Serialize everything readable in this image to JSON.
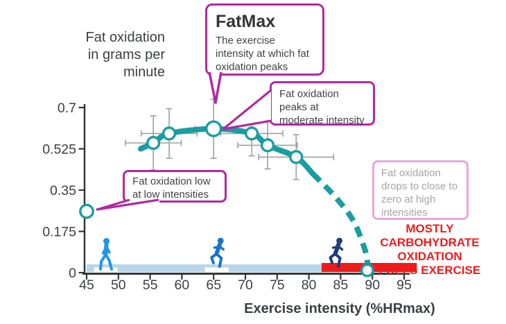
{
  "colors": {
    "teal": "#1b9da1",
    "magenta": "#b2299e",
    "pink_border": "#eba4e0",
    "red": "#ee1b1b",
    "bar_light_blue": "#b9d6ea",
    "walker_blue": "#1e96e6",
    "runner_blue": "#1a72cf",
    "runner_navy": "#1d3d7d",
    "axis": "#33373a",
    "errorbar_gray": "#9f9f9f",
    "gray_text": "#a5a5a5"
  },
  "chart_data": {
    "type": "line",
    "xlabel": "Exercise intensity (%HRmax)",
    "ylabel": "Fat oxidation in grams per minute",
    "ylabel_lines": [
      "Fat oxidation",
      "in grams per",
      "minute"
    ],
    "x_ticks": [
      45,
      50,
      55,
      60,
      65,
      70,
      75,
      80,
      85,
      90,
      95
    ],
    "y_ticks": [
      "0",
      "0.175",
      "0.35",
      "0.525",
      "0.7"
    ],
    "y_tick_values": [
      0,
      0.175,
      0.35,
      0.525,
      0.7
    ],
    "xlim": [
      45,
      95
    ],
    "ylim": [
      0,
      0.7
    ],
    "grid": false,
    "series": [
      {
        "name": "low-intensity-point",
        "points": [
          {
            "x": 45,
            "y": 0.26
          }
        ]
      },
      {
        "name": "measured-fat-oxidation",
        "points": [
          {
            "x": 55.5,
            "y": 0.55,
            "xerr": 4.4,
            "yerr": 0.115
          },
          {
            "x": 58.0,
            "y": 0.59,
            "xerr": 4.4,
            "yerr": 0.105
          },
          {
            "x": 65.0,
            "y": 0.61,
            "xerr": 2.9,
            "yerr": 0.125,
            "fatmax": true
          },
          {
            "x": 71.0,
            "y": 0.59,
            "xerr": 4.9,
            "yerr": 0.095
          },
          {
            "x": 73.5,
            "y": 0.54,
            "xerr": 4.7,
            "yerr": 0.1
          },
          {
            "x": 78.0,
            "y": 0.49,
            "xerr": 5.9,
            "yerr": 0.095
          }
        ]
      },
      {
        "name": "high-intensity-point",
        "points": [
          {
            "x": 89.2,
            "y": 0.01
          }
        ]
      }
    ],
    "solid_curve": [
      [
        53.5,
        0.525
      ],
      [
        55.5,
        0.55
      ],
      [
        58,
        0.59
      ],
      [
        65,
        0.61
      ],
      [
        71,
        0.59
      ],
      [
        73.5,
        0.54
      ],
      [
        78,
        0.49
      ],
      [
        80.6,
        0.42
      ]
    ],
    "dashed_curve": [
      [
        80.6,
        0.42
      ],
      [
        84.2,
        0.32
      ],
      [
        87,
        0.22
      ],
      [
        88.8,
        0.1
      ],
      [
        89.3,
        0.03
      ]
    ],
    "zones": [
      {
        "name": "low-moderate-intensity-zone",
        "from": 45,
        "to": 82,
        "color": "#b9d6ea"
      },
      {
        "name": "high-intensity-zone",
        "from": 82,
        "to": 97,
        "color": "#ee1b1b"
      }
    ],
    "figures": [
      {
        "icon": "walking-person",
        "x": 48,
        "notch": true
      },
      {
        "icon": "running-person",
        "x": 65.5,
        "notch": true
      },
      {
        "icon": "running-person-dark",
        "x": 84.2,
        "notch": false
      }
    ]
  },
  "callouts": {
    "fatmax": {
      "title": "FatMax",
      "body": "The exercise intensity at which fat oxidation peaks"
    },
    "peak": {
      "text": "Fat oxidation peaks at moderate intensity"
    },
    "low": {
      "text": "Fat oxidation low at low intensities"
    },
    "high": {
      "text": "Fat oxidation drops to close to zero at high intensities"
    }
  },
  "red_note": {
    "lines": [
      "MOSTLY CARBOHYDRATE",
      "OXIDATION",
      "FUELS EXERCISE"
    ]
  }
}
